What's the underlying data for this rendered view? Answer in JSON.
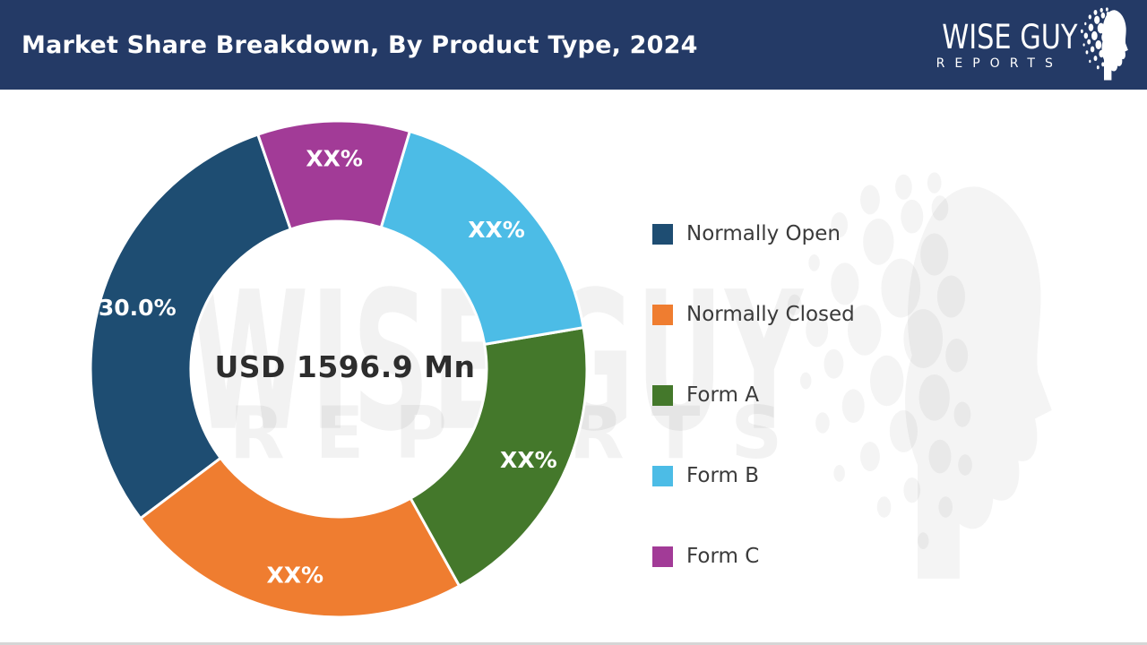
{
  "header": {
    "title": "Market Share Breakdown, By Product Type, 2024",
    "bg_color": "#243a66",
    "logo": {
      "line1": "WISE GUY",
      "line2": "REPORTS"
    }
  },
  "watermark": {
    "line1": "WISE GUY",
    "line2": "REPORTS"
  },
  "chart_data": {
    "type": "pie",
    "subtype": "donut",
    "title": "Market Share Breakdown, By Product Type, 2024",
    "center_label": "USD 1596.9 Mn",
    "legend_position": "right",
    "start_angle_deg": 109,
    "direction": "counterclockwise",
    "slices": [
      {
        "name": "Normally Open",
        "color": "#1e4d72",
        "label": "30.0%",
        "value_pct_est": 30.0
      },
      {
        "name": "Normally Closed",
        "color": "#ef7d30",
        "label": "XX%",
        "value_pct_est": 22.8
      },
      {
        "name": "Form A",
        "color": "#44782b",
        "label": "XX%",
        "value_pct_est": 19.6
      },
      {
        "name": "Form B",
        "color": "#4cbce6",
        "label": "XX%",
        "value_pct_est": 17.7
      },
      {
        "name": "Form C",
        "color": "#a23b97",
        "label": "XX%",
        "value_pct_est": 9.9
      }
    ]
  }
}
